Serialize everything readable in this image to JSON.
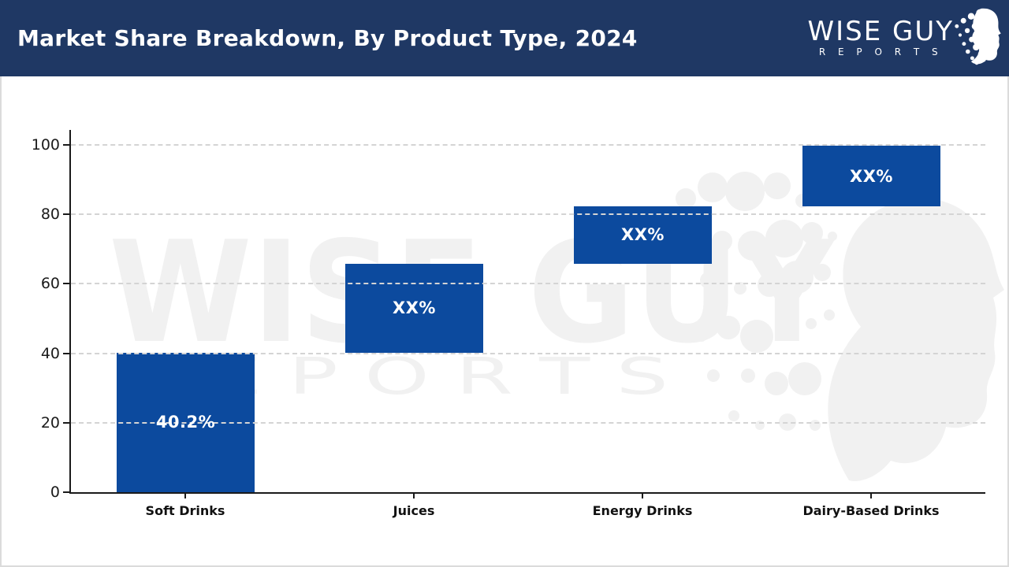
{
  "header": {
    "title": "Market Share Breakdown, By Product Type, 2024",
    "logo": {
      "line1": "WISE GUY",
      "line2": "R E P O R T S"
    }
  },
  "watermark": {
    "line1": "WISE GUY",
    "line2": "R E P O R T S"
  },
  "colors": {
    "header_bg": "#1F3864",
    "bar": "#0C4A9E",
    "bar_label": "#FFFFFF",
    "grid": "#D4D4D4",
    "axis": "#1A1A1A",
    "watermark": "#F1F1F1"
  },
  "chart_data": {
    "type": "bar",
    "subtype": "waterfall",
    "title": "Market Share Breakdown, By Product Type, 2024",
    "categories": [
      "Soft Drinks",
      "Juices",
      "Energy Drinks",
      "Dairy-Based Drinks"
    ],
    "segments": [
      {
        "category": "Soft Drinks",
        "start": 0,
        "end": 40.2,
        "label": "40.2%"
      },
      {
        "category": "Juices",
        "start": 40.2,
        "end": 65.8,
        "label": "XX%"
      },
      {
        "category": "Energy Drinks",
        "start": 65.8,
        "end": 82.3,
        "label": "XX%"
      },
      {
        "category": "Dairy-Based Drinks",
        "start": 82.3,
        "end": 99.7,
        "label": "XX%"
      }
    ],
    "yticks": [
      0,
      20,
      40,
      60,
      80,
      100
    ],
    "ylim": [
      0,
      100
    ],
    "grid": true,
    "legend": false,
    "xlabel": "",
    "ylabel": ""
  }
}
